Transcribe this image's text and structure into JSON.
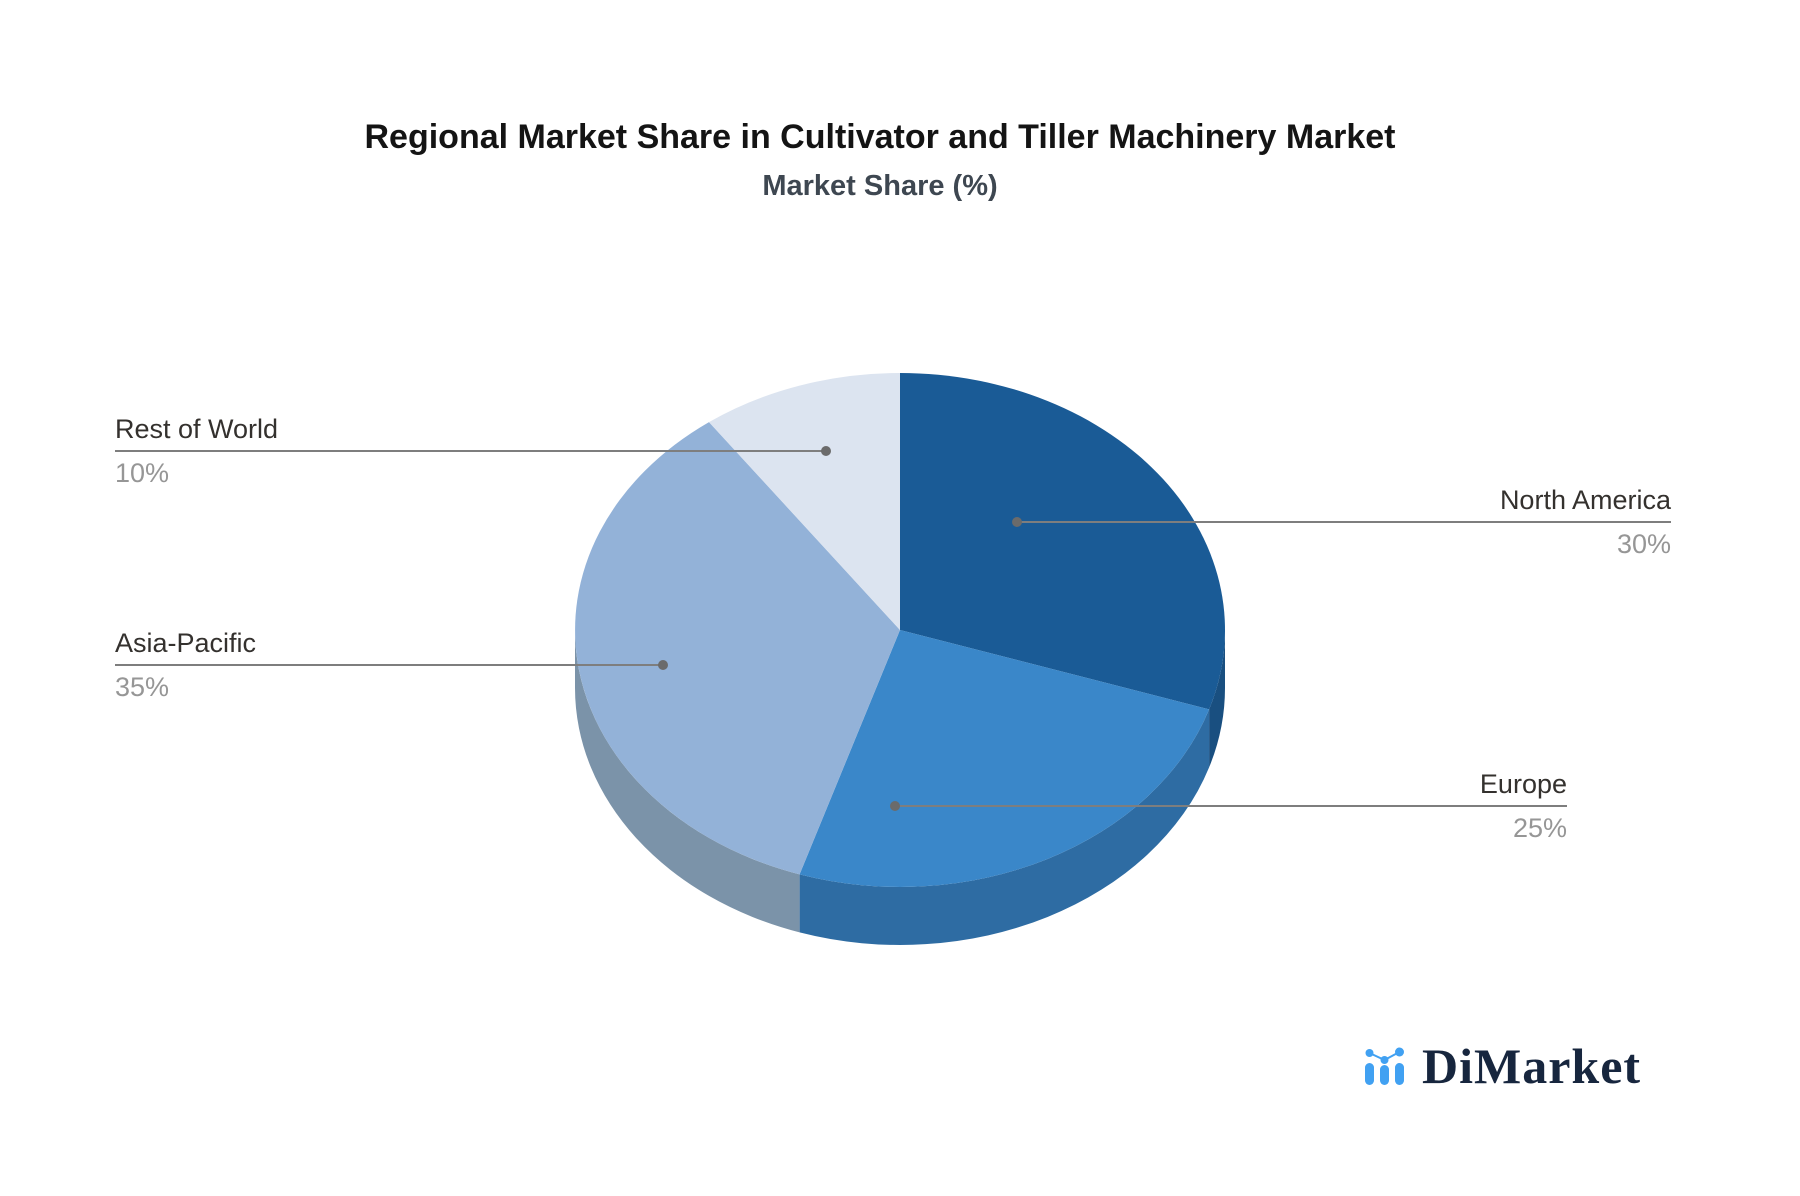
{
  "chart_data": {
    "type": "pie",
    "style": "3d",
    "title": "Regional Market Share in Cultivator and Tiller Machinery Market",
    "subtitle": "Market Share (%)",
    "unit": "%",
    "start_angle_deg": 0,
    "direction": "clockwise",
    "legend_position": "callout-labels",
    "slices": [
      {
        "label": "North America",
        "value": 30,
        "value_text": "30%",
        "color": "#1A5B96",
        "side_color": "#194F80"
      },
      {
        "label": "Europe",
        "value": 25,
        "value_text": "25%",
        "color": "#3A87C9",
        "side_color": "#2E6CA3"
      },
      {
        "label": "Asia-Pacific",
        "value": 35,
        "value_text": "35%",
        "color": "#93B2D8",
        "side_color": "#7B93A9"
      },
      {
        "label": "Rest of World",
        "value": 10,
        "value_text": "10%",
        "color": "#DCE4F0",
        "side_color": null
      }
    ],
    "callout_line_color": "#7E7E7E",
    "callout_dot_color": "#6B6B6B",
    "label_color": "#34312E",
    "value_color": "#969696"
  },
  "logo": {
    "text": "DiMarket",
    "icon": "bar-line-chart-icon",
    "icon_color": "#41A1F2",
    "text_color": "#17263E"
  }
}
